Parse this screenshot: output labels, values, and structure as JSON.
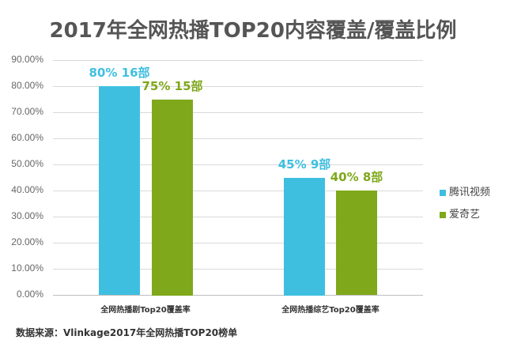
{
  "chart_data": {
    "type": "bar",
    "title": "2017年全网热播TOP20内容覆盖/覆盖比例",
    "categories": [
      "全网热播剧Top20覆盖率",
      "全网热播综艺Top20覆盖率"
    ],
    "series": [
      {
        "name": "腾讯视频",
        "values": [
          80,
          45
        ],
        "counts": [
          16,
          9
        ],
        "color": "#3ebfe0",
        "labels": [
          "80% 16部",
          "45% 9部"
        ]
      },
      {
        "name": "爱奇艺",
        "values": [
          75,
          40
        ],
        "counts": [
          15,
          8
        ],
        "color": "#7fa81a",
        "labels": [
          "75% 15部",
          "40% 8部"
        ]
      }
    ],
    "xlabel": "",
    "ylabel": "",
    "ylim": [
      0,
      90
    ],
    "yticks": [
      "0.00%",
      "10.00%",
      "20.00%",
      "30.00%",
      "40.00%",
      "50.00%",
      "60.00%",
      "70.00%",
      "80.00%",
      "90.00%"
    ],
    "grid": true,
    "legend_position": "right"
  },
  "source": "数据来源：Vlinkage2017年全网热播TOP20榜单",
  "colors": {
    "title": "#555555",
    "cyan": "#3ebfe0",
    "green": "#7fa81a"
  }
}
